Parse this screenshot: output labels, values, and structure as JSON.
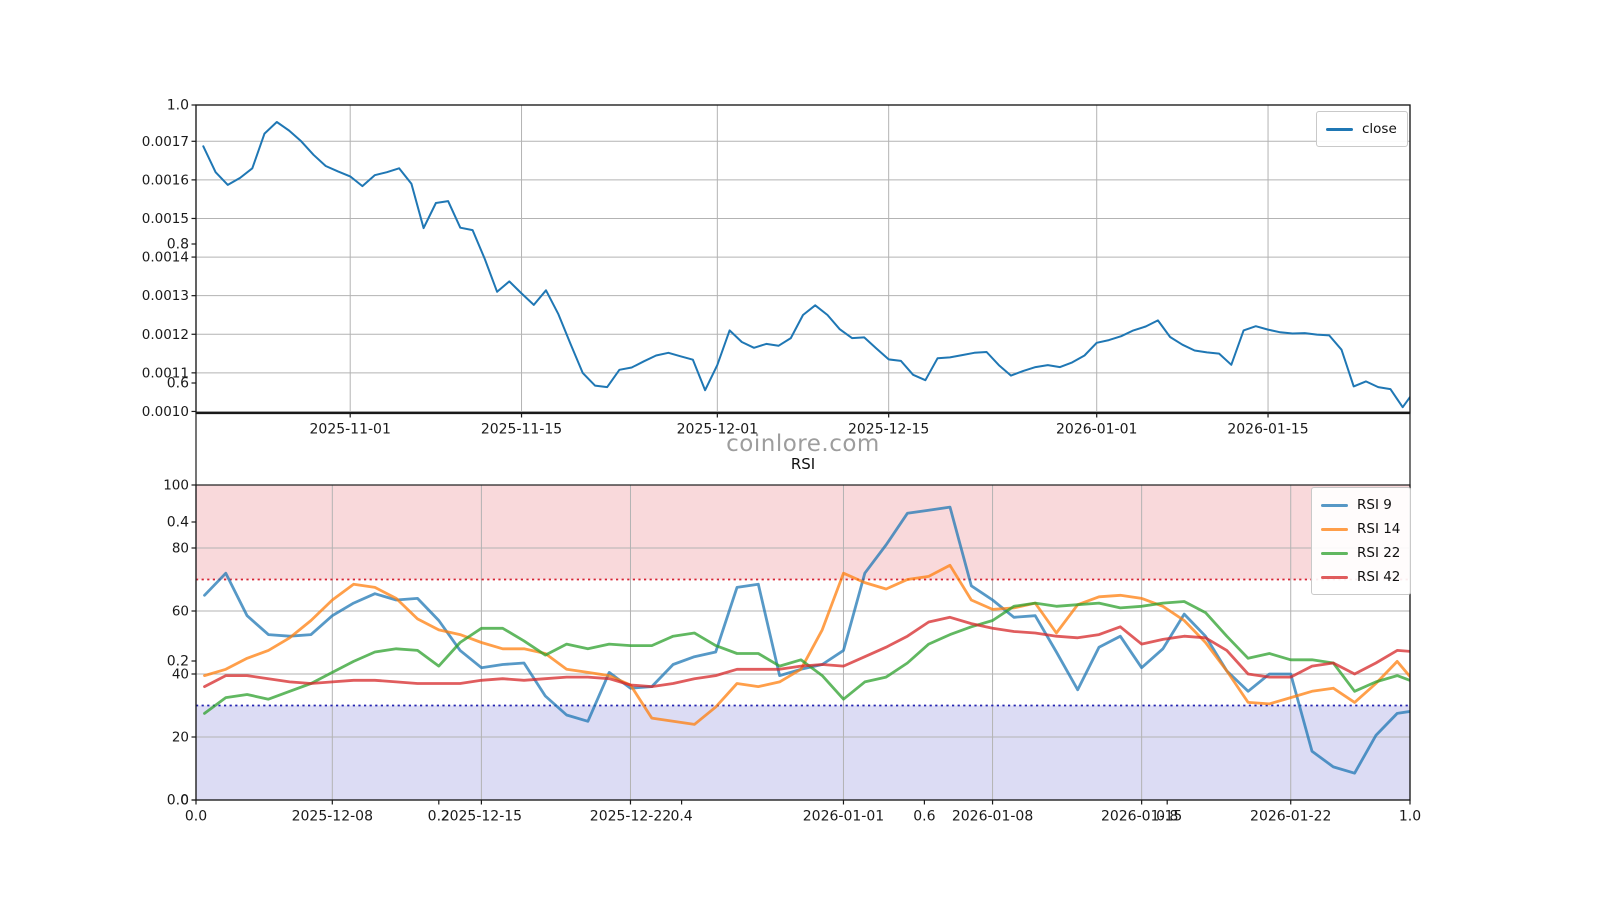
{
  "watermark": "coinlore.com",
  "colors": {
    "close_line": "#1f77b4",
    "rsi9": "#1f77b4",
    "rsi14": "#ff7f0e",
    "rsi22": "#2ca02c",
    "rsi42": "#d62728",
    "overbought_band": "#f9d9db",
    "oversold_band": "#dcdcf4",
    "overbought_line": "#d62333",
    "oversold_line": "#2323b0",
    "grid": "#b3b3b3",
    "spine": "#1a1a1a",
    "watermark_color": "#8d8d8d"
  },
  "parent_axis": {
    "yticks": [
      "1.0",
      "0.8",
      "0.6",
      "0.4",
      "0.2",
      "0.0"
    ],
    "xticks": [
      "0.0",
      "0.2",
      "0.4",
      "0.6",
      "0.8",
      "1.0"
    ]
  },
  "chart_data": [
    {
      "type": "line",
      "title": "",
      "xlabel": "",
      "ylabel": "",
      "legend_position": "upper right",
      "grid": true,
      "x_domain": {
        "start": "2025-10-19",
        "start_frac": 0.4,
        "end": "2026-01-26",
        "end_frac": 0.6
      },
      "ylim": [
        0.000996,
        0.001794
      ],
      "yticks": [
        {
          "value": 0.001,
          "label": "0.0010"
        },
        {
          "value": 0.0011,
          "label": "0.0011"
        },
        {
          "value": 0.0012,
          "label": "0.0012"
        },
        {
          "value": 0.0013,
          "label": "0.0013"
        },
        {
          "value": 0.0014,
          "label": "0.0014"
        },
        {
          "value": 0.0015,
          "label": "0.0015"
        },
        {
          "value": 0.0016,
          "label": "0.0016"
        },
        {
          "value": 0.0017,
          "label": "0.0017"
        }
      ],
      "xticks": [
        {
          "date": "2025-11-01",
          "label": "2025-11-01"
        },
        {
          "date": "2025-11-15",
          "label": "2025-11-15"
        },
        {
          "date": "2025-12-01",
          "label": "2025-12-01"
        },
        {
          "date": "2025-12-15",
          "label": "2025-12-15"
        },
        {
          "date": "2026-01-01",
          "label": "2026-01-01"
        },
        {
          "date": "2026-01-15",
          "label": "2026-01-15"
        }
      ],
      "series": [
        {
          "name": "close",
          "color_key": "close_line",
          "width": 2,
          "opacity": 1,
          "start_date": "2025-10-20",
          "values": [
            0.001687,
            0.00162,
            0.001587,
            0.001605,
            0.00163,
            0.00172,
            0.00175,
            0.001728,
            0.0017,
            0.001665,
            0.001636,
            0.001622,
            0.001609,
            0.001584,
            0.001612,
            0.00162,
            0.00163,
            0.00159,
            0.001475,
            0.00154,
            0.001545,
            0.001476,
            0.00147,
            0.001395,
            0.00131,
            0.001337,
            0.001306,
            0.001276,
            0.001314,
            0.001253,
            0.001175,
            0.0011,
            0.001067,
            0.001063,
            0.001108,
            0.001114,
            0.00113,
            0.001145,
            0.001152,
            0.001143,
            0.001134,
            0.001055,
            0.00112,
            0.00121,
            0.00118,
            0.001165,
            0.001175,
            0.00117,
            0.00119,
            0.00125,
            0.001275,
            0.00125,
            0.001213,
            0.00119,
            0.001192,
            0.001163,
            0.001135,
            0.001131,
            0.001095,
            0.001081,
            0.001138,
            0.00114,
            0.001146,
            0.001152,
            0.001154,
            0.00112,
            0.001093,
            0.001105,
            0.001115,
            0.00112,
            0.001115,
            0.001127,
            0.001145,
            0.001178,
            0.001185,
            0.001195,
            0.00121,
            0.00122,
            0.001236,
            0.001193,
            0.001173,
            0.001158,
            0.001153,
            0.00115,
            0.001121,
            0.00121,
            0.001221,
            0.001212,
            0.001205,
            0.001202,
            0.001203,
            0.001199,
            0.001197,
            0.00116,
            0.001065,
            0.001078,
            0.001063,
            0.001058,
            0.001011,
            0.001055
          ]
        }
      ]
    },
    {
      "type": "line",
      "title": "RSI",
      "xlabel": "",
      "ylabel": "",
      "legend_position": "upper right",
      "grid": true,
      "x_domain": {
        "start": "2025-12-01",
        "start_frac": 0.6,
        "end": "2026-01-27",
        "end_frac": 0.6
      },
      "ylim": [
        0,
        100
      ],
      "yticks": [
        {
          "value": 0,
          "label": "0"
        },
        {
          "value": 20,
          "label": "20"
        },
        {
          "value": 40,
          "label": "40"
        },
        {
          "value": 60,
          "label": "60"
        },
        {
          "value": 80,
          "label": "80"
        },
        {
          "value": 100,
          "label": "100"
        }
      ],
      "xticks": [
        {
          "date": "2025-12-08",
          "label": "2025-12-08"
        },
        {
          "date": "2025-12-15",
          "label": "2025-12-15"
        },
        {
          "date": "2025-12-22",
          "label": "2025-12-22"
        },
        {
          "date": "2026-01-01",
          "label": "2026-01-01"
        },
        {
          "date": "2026-01-08",
          "label": "2026-01-08"
        },
        {
          "date": "2026-01-15",
          "label": "2026-01-15"
        },
        {
          "date": "2026-01-22",
          "label": "2026-01-22"
        }
      ],
      "bands": [
        {
          "from": 70,
          "to": 100,
          "color_key": "overbought_band"
        },
        {
          "from": 0,
          "to": 30,
          "color_key": "oversold_band"
        }
      ],
      "hlines": [
        {
          "y": 70,
          "color_key": "overbought_line"
        },
        {
          "y": 30,
          "color_key": "oversold_line"
        }
      ],
      "series": [
        {
          "name": "RSI 9",
          "color_key": "rsi9",
          "width": 2.8,
          "opacity": 0.75,
          "start_date": "2025-12-02",
          "values": [
            65,
            72,
            58.5,
            52.5,
            52,
            52.5,
            58.5,
            62.5,
            65.5,
            63.5,
            64,
            57,
            47.5,
            42,
            43,
            43.5,
            33,
            27,
            25,
            40.5,
            35.5,
            36,
            43,
            45.5,
            47,
            67.5,
            68.5,
            39.5,
            41.5,
            43,
            47.5,
            72,
            81,
            91,
            92,
            93,
            68,
            63.5,
            58,
            58.5,
            47,
            35,
            48.5,
            52,
            42,
            48,
            59,
            52,
            41,
            34.5,
            40,
            40,
            15.5,
            10.5,
            8.5,
            20.5,
            27.5,
            28.5
          ]
        },
        {
          "name": "RSI 14",
          "color_key": "rsi14",
          "width": 2.8,
          "opacity": 0.75,
          "start_date": "2025-12-02",
          "values": [
            39.5,
            41.5,
            45,
            47.5,
            51.5,
            57,
            63.5,
            68.5,
            67.5,
            64,
            57.5,
            54,
            52.5,
            50,
            48,
            48,
            46.5,
            41.5,
            40.5,
            39.5,
            36.5,
            26,
            25,
            24,
            29.5,
            37,
            36,
            37.5,
            41.5,
            54,
            72,
            69,
            67,
            70,
            71,
            74.5,
            63.5,
            60.5,
            61,
            62.5,
            53,
            62,
            64.5,
            65,
            64,
            61.5,
            57,
            50,
            41,
            31,
            30.5,
            32.5,
            34.5,
            35.5,
            31,
            37,
            44,
            36
          ]
        },
        {
          "name": "RSI 22",
          "color_key": "rsi22",
          "width": 2.8,
          "opacity": 0.75,
          "start_date": "2025-12-02",
          "values": [
            27.5,
            32.5,
            33.5,
            32,
            34.5,
            37,
            40.5,
            44,
            47,
            48,
            47.5,
            42.5,
            50,
            54.5,
            54.5,
            50.5,
            46,
            49.5,
            48,
            49.5,
            49,
            49,
            52,
            53,
            49,
            46.5,
            46.5,
            42.5,
            44.5,
            39.5,
            32,
            37.5,
            39,
            43.5,
            49.5,
            52.5,
            55,
            57,
            61.5,
            62.5,
            61.5,
            62,
            62.5,
            61,
            61.5,
            62.5,
            63,
            59.5,
            52,
            45,
            46.5,
            44.5,
            44.5,
            43.5,
            34.5,
            37.5,
            39.5,
            37
          ]
        },
        {
          "name": "RSI 42",
          "color_key": "rsi42",
          "width": 2.8,
          "opacity": 0.75,
          "start_date": "2025-12-02",
          "values": [
            36,
            39.5,
            39.5,
            38.5,
            37.5,
            37,
            37.5,
            38,
            38,
            37.5,
            37,
            37,
            37,
            38,
            38.5,
            38,
            38.5,
            39,
            39,
            38.5,
            36.5,
            36,
            37,
            38.5,
            39.5,
            41.5,
            41.5,
            41.5,
            42.5,
            43,
            42.5,
            45.5,
            48.5,
            52,
            56.5,
            58,
            56,
            54.5,
            53.5,
            53,
            52,
            51.5,
            52.5,
            55,
            49.5,
            51,
            52,
            51.5,
            47.5,
            40,
            39,
            39,
            42.5,
            43.5,
            40,
            43.5,
            47.5,
            47
          ]
        }
      ]
    }
  ]
}
